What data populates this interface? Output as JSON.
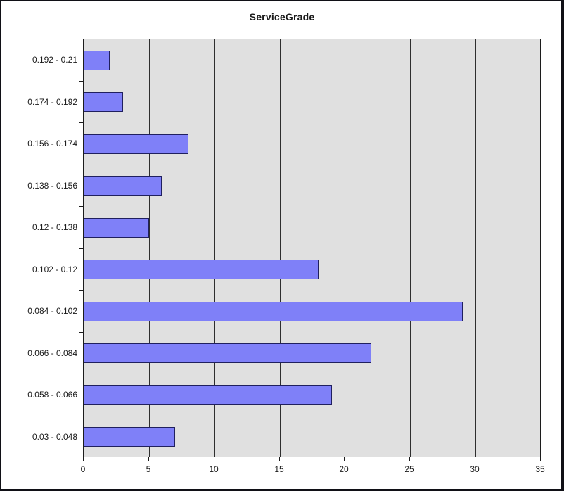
{
  "window": {
    "frame_border_color": "#101016",
    "background_color": "#ffffff"
  },
  "chart_data": {
    "type": "bar",
    "orientation": "horizontal",
    "title": "ServiceGrade",
    "categories": [
      "0.192 - 0.21",
      "0.174 - 0.192",
      "0.156 - 0.174",
      "0.138 - 0.156",
      "0.12 - 0.138",
      "0.102 - 0.12",
      "0.084 - 0.102",
      "0.066 - 0.084",
      "0.058 - 0.066",
      "0.03 - 0.048"
    ],
    "values": [
      2,
      3,
      8,
      6,
      5,
      18,
      29,
      22,
      19,
      7
    ],
    "xlabel": "",
    "ylabel": "",
    "xlim": [
      0,
      35
    ],
    "xticks": [
      0,
      5,
      10,
      15,
      20,
      25,
      30,
      35
    ],
    "grid": true,
    "legend": false,
    "colors": {
      "bar_fill": "#7f80f8",
      "bar_border": "#20205e",
      "plot_background": "#e0e0e0",
      "gridline": "#2e2e2e",
      "axis": "#1c1c1c",
      "text": "#1a1a1a"
    }
  }
}
